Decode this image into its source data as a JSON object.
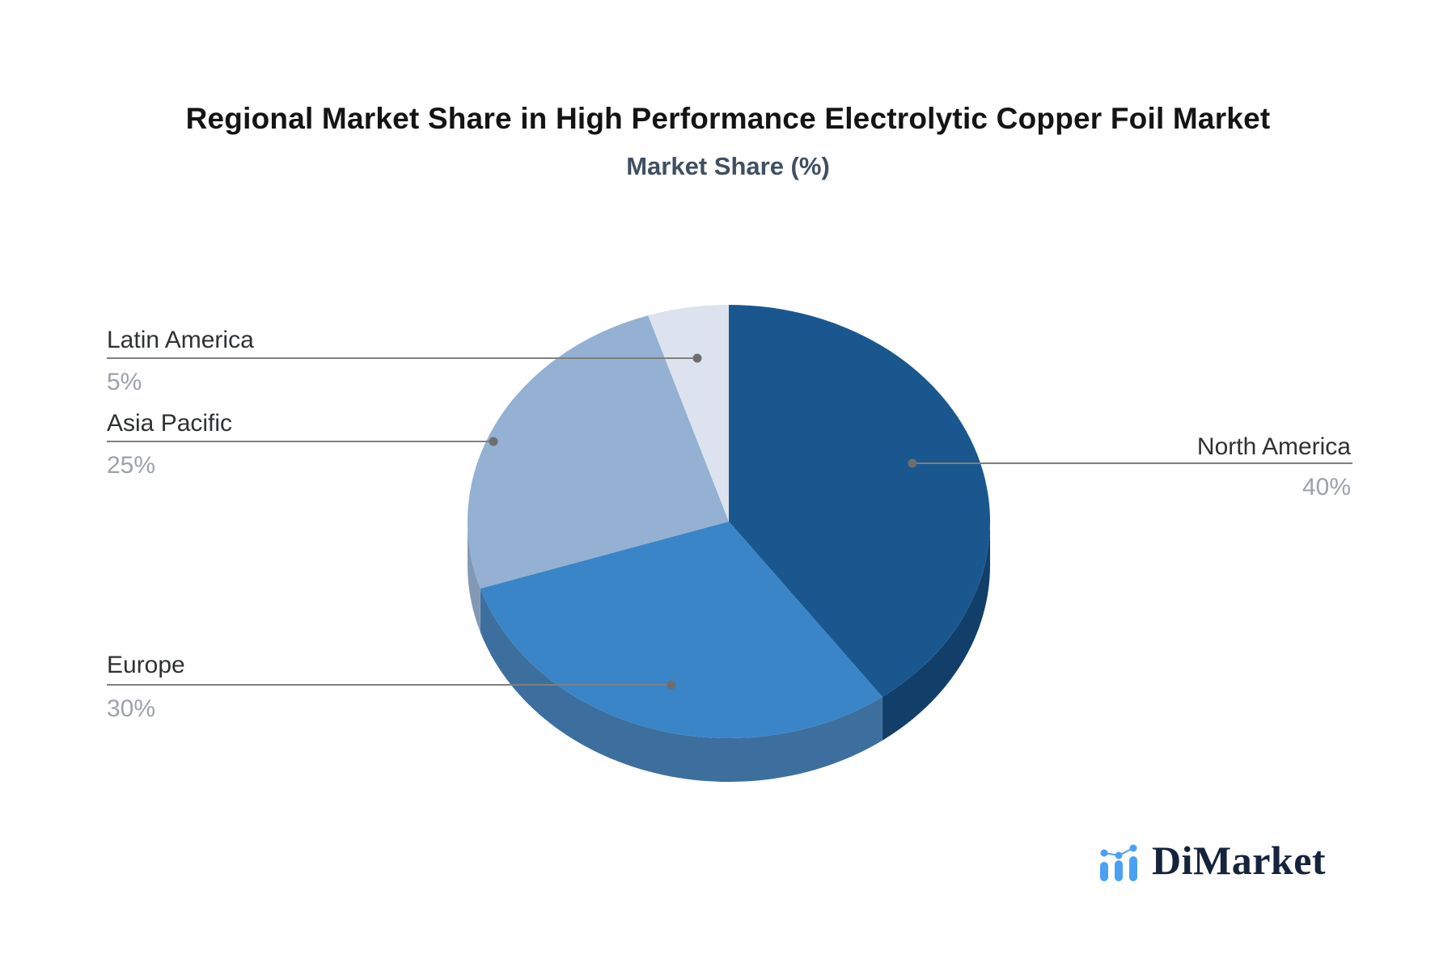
{
  "chart_data": {
    "type": "pie",
    "is_3d": true,
    "title": "Regional Market Share in High Performance Electrolytic Copper Foil Market",
    "subtitle": "Market Share (%)",
    "start_angle_deg": 0,
    "direction": "clockwise",
    "labels_position": "callout",
    "legend": "none",
    "slices": [
      {
        "label": "North America",
        "value": 40,
        "pct_label": "40%",
        "color": "#1A578F",
        "side_color": "#123F69"
      },
      {
        "label": "Europe",
        "value": 30,
        "pct_label": "30%",
        "color": "#3A85C7",
        "side_color": "#3D6F9E"
      },
      {
        "label": "Asia Pacific",
        "value": 25,
        "pct_label": "25%",
        "color": "#94B0D2",
        "side_color": "#8398B4"
      },
      {
        "label": "Latin America",
        "value": 5,
        "pct_label": "5%",
        "color": "#DCE3EE",
        "side_color": "#B9C4D6"
      }
    ],
    "callout_line_color": "#7F7F7F",
    "callout_dot_color": "#6E6E6E",
    "label_color": "#2F3133",
    "pct_color": "#9CA2A8"
  },
  "brand": {
    "name": "DiMarket",
    "icon": "bar-line-chart-logo",
    "icon_color": "#4AA1F4",
    "text_color": "#16233C"
  }
}
